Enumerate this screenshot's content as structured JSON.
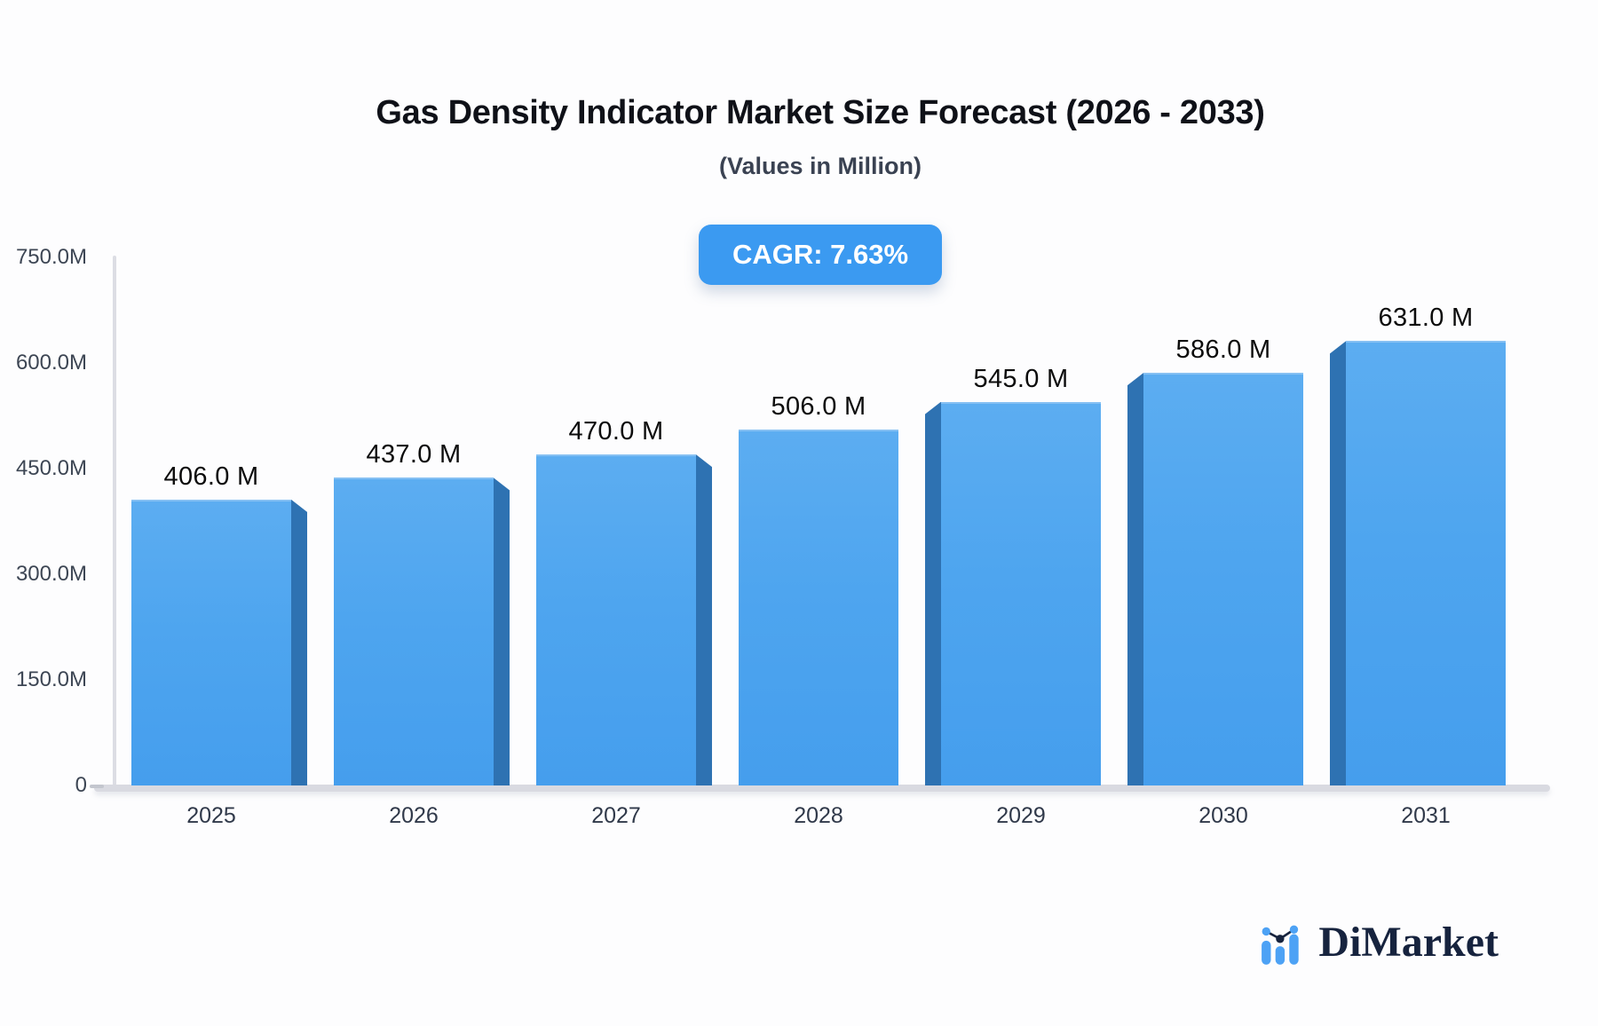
{
  "header": {
    "title": "Gas Density Indicator Market Size Forecast (2026 - 2033)",
    "subtitle": "(Values in Million)"
  },
  "badge": {
    "label": "CAGR: 7.63%",
    "cagr_percent": 7.63,
    "background_color": "#3b9af1",
    "text_color": "#ffffff"
  },
  "brand": {
    "name": "DiMarket",
    "text_color": "#16233e",
    "accent_color": "#4da2f5"
  },
  "chart_data": {
    "type": "bar",
    "title": "Gas Density Indicator Market Size Forecast (2026 - 2033)",
    "subtitle": "(Values in Million)",
    "unit": "Million",
    "categories": [
      "2025",
      "2026",
      "2027",
      "2028",
      "2029",
      "2030",
      "2031"
    ],
    "values": [
      406,
      437,
      470,
      506,
      545,
      586,
      631
    ],
    "value_labels": [
      "406.0 M",
      "437.0 M",
      "470.0 M",
      "506.0 M",
      "545.0 M",
      "586.0 M",
      "631.0 M"
    ],
    "y_ticks": [
      {
        "label": "750.0M",
        "value": 750
      },
      {
        "label": "600.0M",
        "value": 600
      },
      {
        "label": "450.0M",
        "value": 450
      },
      {
        "label": "300.0M",
        "value": 300
      },
      {
        "label": "150.0M",
        "value": 150
      },
      {
        "label": "0",
        "value": 0
      }
    ],
    "ylim": [
      0,
      750
    ],
    "grid": false,
    "legend": false,
    "colors": {
      "bar_fill_top": "#5cadf1",
      "bar_fill_bottom": "#459eed",
      "bar_side_face": "#2e72b2",
      "axis_line": "#dcdde4",
      "tick_label": "#3d4654",
      "value_label": "#0c0c0c"
    }
  }
}
